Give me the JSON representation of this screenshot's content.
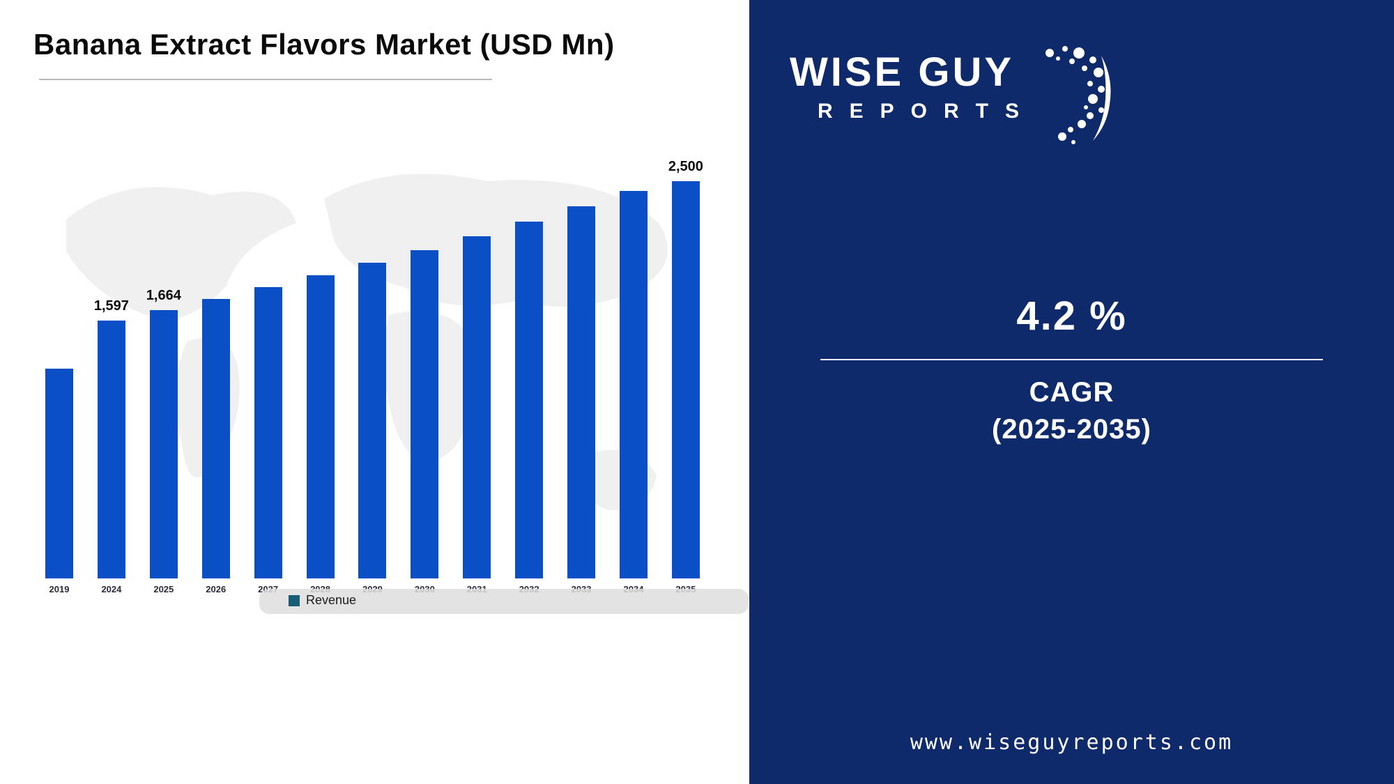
{
  "header": {
    "title": "Banana Extract Flavors Market (USD Mn)"
  },
  "chart_data": {
    "type": "bar",
    "title": "Banana Extract Flavors Market (USD Mn)",
    "categories": [
      "2019",
      "2024",
      "2025",
      "2026",
      "2027",
      "2028",
      "2029",
      "2030",
      "2031",
      "2032",
      "2033",
      "2034",
      "2035"
    ],
    "values": [
      1300,
      1597,
      1664,
      1730,
      1805,
      1880,
      1955,
      2035,
      2120,
      2210,
      2305,
      2400,
      2500
    ],
    "data_labels": [
      "",
      "1,597",
      "1,664",
      "",
      "",
      "",
      "",
      "",
      "",
      "",
      "",
      "",
      "2,500"
    ],
    "ylim": [
      0,
      2600
    ],
    "ylabel": "",
    "xlabel": "",
    "grid": false,
    "legend": [
      "Revenue"
    ],
    "legend_position": "bottom",
    "bar_color": "#0a4fc6",
    "legend_symbol_color": "#155e75"
  },
  "legend": {
    "label": "Revenue"
  },
  "panel": {
    "bg_color": "#0e2a6b",
    "logo": {
      "line1": "WISE GUY",
      "line2": "REPORTS"
    },
    "cagr_value": "4.2 %",
    "cagr_label": "CAGR",
    "cagr_range": "(2025-2035)",
    "website": "www.wiseguyreports.com"
  }
}
